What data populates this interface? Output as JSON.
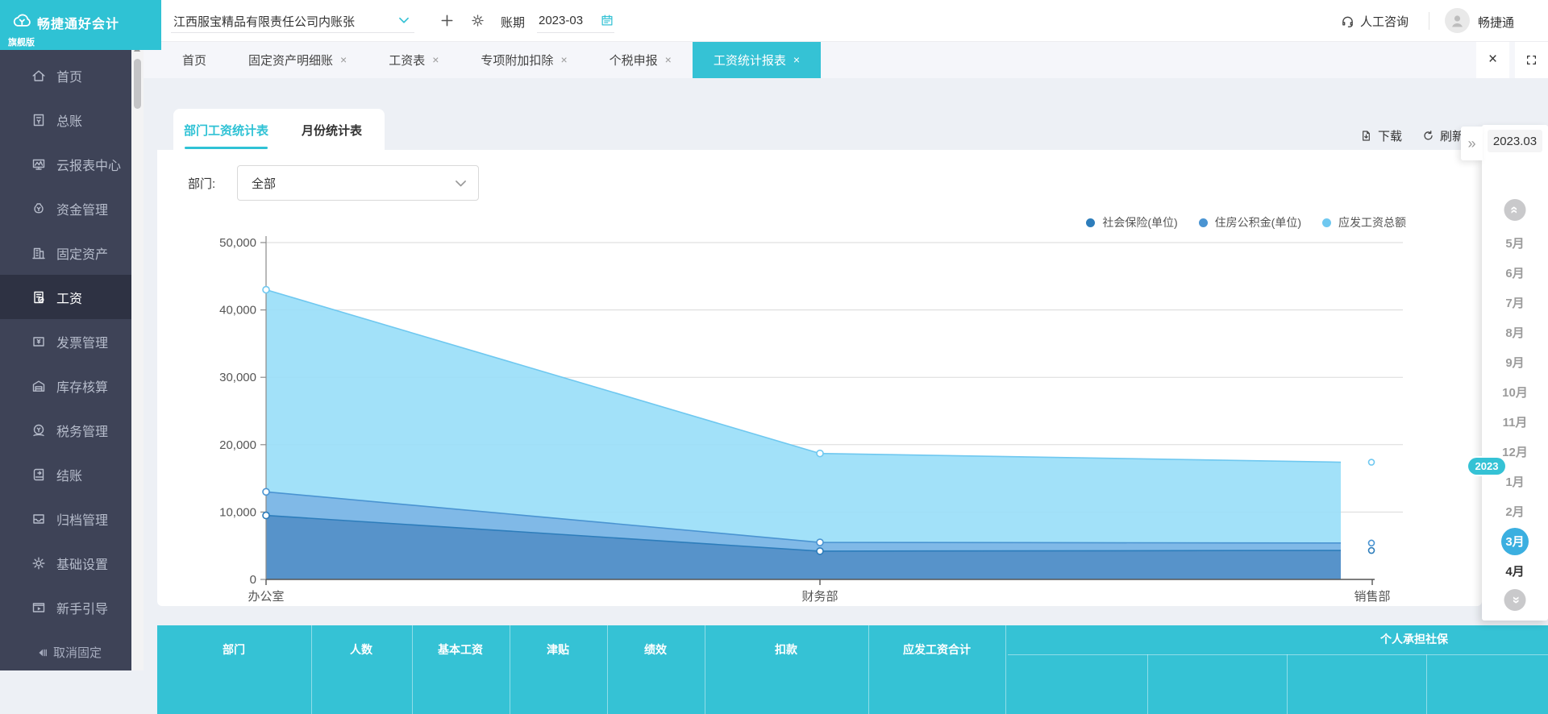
{
  "brand": {
    "name": "畅捷通好会计",
    "edition": "旗舰版"
  },
  "topbar": {
    "company": "江西服宝精品有限责任公司内账张",
    "period_label": "账期",
    "period_value": "2023-03",
    "help": "人工咨询",
    "user": "畅捷通"
  },
  "window_tabs": {
    "items": [
      {
        "label": "首页",
        "closable": false,
        "active": false
      },
      {
        "label": "固定资产明细账",
        "closable": true,
        "active": false
      },
      {
        "label": "工资表",
        "closable": true,
        "active": false
      },
      {
        "label": "专项附加扣除",
        "closable": true,
        "active": false
      },
      {
        "label": "个税申报",
        "closable": true,
        "active": false
      },
      {
        "label": "工资统计报表",
        "closable": true,
        "active": true
      }
    ]
  },
  "sidebar": {
    "items": [
      {
        "label": "首页",
        "icon": "home",
        "active": false
      },
      {
        "label": "总账",
        "icon": "ledger",
        "active": false
      },
      {
        "label": "云报表中心",
        "icon": "report",
        "active": false
      },
      {
        "label": "资金管理",
        "icon": "funds",
        "active": false
      },
      {
        "label": "固定资产",
        "icon": "assets",
        "active": false
      },
      {
        "label": "工资",
        "icon": "salary",
        "active": true
      },
      {
        "label": "发票管理",
        "icon": "invoice",
        "active": false
      },
      {
        "label": "库存核算",
        "icon": "inventory",
        "active": false
      },
      {
        "label": "税务管理",
        "icon": "tax",
        "active": false
      },
      {
        "label": "结账",
        "icon": "closing",
        "active": false
      },
      {
        "label": "归档管理",
        "icon": "archive",
        "active": false
      },
      {
        "label": "基础设置",
        "icon": "settings",
        "active": false
      },
      {
        "label": "新手引导",
        "icon": "guide",
        "active": false
      }
    ],
    "unpin": "取消固定"
  },
  "content": {
    "tabs": [
      {
        "label": "部门工资统计表",
        "active": true
      },
      {
        "label": "月份统计表",
        "active": false
      }
    ],
    "download": "下载",
    "refresh": "刷新",
    "filter_label": "部门:",
    "filter_value": "全部"
  },
  "chart_data": {
    "type": "area",
    "categories": [
      "办公室",
      "财务部",
      "销售部"
    ],
    "series": [
      {
        "name": "社会保险(单位)",
        "color": "#2d7dbb",
        "fill": "#548fc8",
        "values": [
          9500,
          4200,
          4300
        ]
      },
      {
        "name": "住房公积金(单位)",
        "color": "#4a94d2",
        "fill": "#7db5e5",
        "values": [
          13000,
          5500,
          5400
        ]
      },
      {
        "name": "应发工资总额",
        "color": "#6fc8f0",
        "fill": "#9adef9",
        "values": [
          43000,
          18700,
          17400
        ]
      }
    ],
    "ylim": [
      0,
      50000
    ],
    "ytick_step": 10000,
    "grid": true,
    "legend_position": "top-right"
  },
  "month_panel": {
    "current": "2023.03",
    "year_badge": "2023",
    "months": [
      {
        "label": "5月"
      },
      {
        "label": "6月"
      },
      {
        "label": "7月"
      },
      {
        "label": "8月"
      },
      {
        "label": "9月"
      },
      {
        "label": "10月"
      },
      {
        "label": "11月"
      },
      {
        "label": "12月"
      },
      {
        "label": "1月"
      },
      {
        "label": "2月"
      },
      {
        "label": "3月",
        "selected": true
      },
      {
        "label": "4月",
        "dark": true
      }
    ]
  },
  "table": {
    "columns": [
      "部门",
      "人数",
      "基本工资",
      "津贴",
      "绩效",
      "扣款",
      "应发工资合计"
    ],
    "group_header": "个人承担社保"
  }
}
